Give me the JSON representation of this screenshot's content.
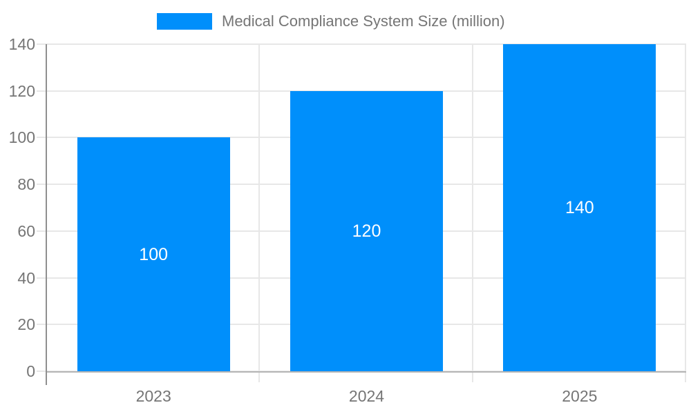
{
  "chart_data": {
    "type": "bar",
    "title": "Medical Compliance System Size (million)",
    "categories": [
      "2023",
      "2024",
      "2025"
    ],
    "values": [
      100,
      120,
      140
    ],
    "data_labels": [
      "100",
      "120",
      "140"
    ],
    "yticks": [
      "0",
      "20",
      "40",
      "60",
      "80",
      "100",
      "120",
      "140"
    ],
    "ylim": [
      0,
      140
    ],
    "xlabel": "",
    "ylabel": "",
    "grid": true,
    "legend_position": "top",
    "data_label_position": "center-inside"
  },
  "colors": {
    "bar": "#008FFB",
    "axis_text": "#757575",
    "legend_text": "#757575",
    "gridline": "#e7e7e7",
    "y_axis_line": "#8f8f8f",
    "x_axis_line": "#b5b5b5",
    "background": "#ffffff",
    "data_label": "#ffffff"
  }
}
